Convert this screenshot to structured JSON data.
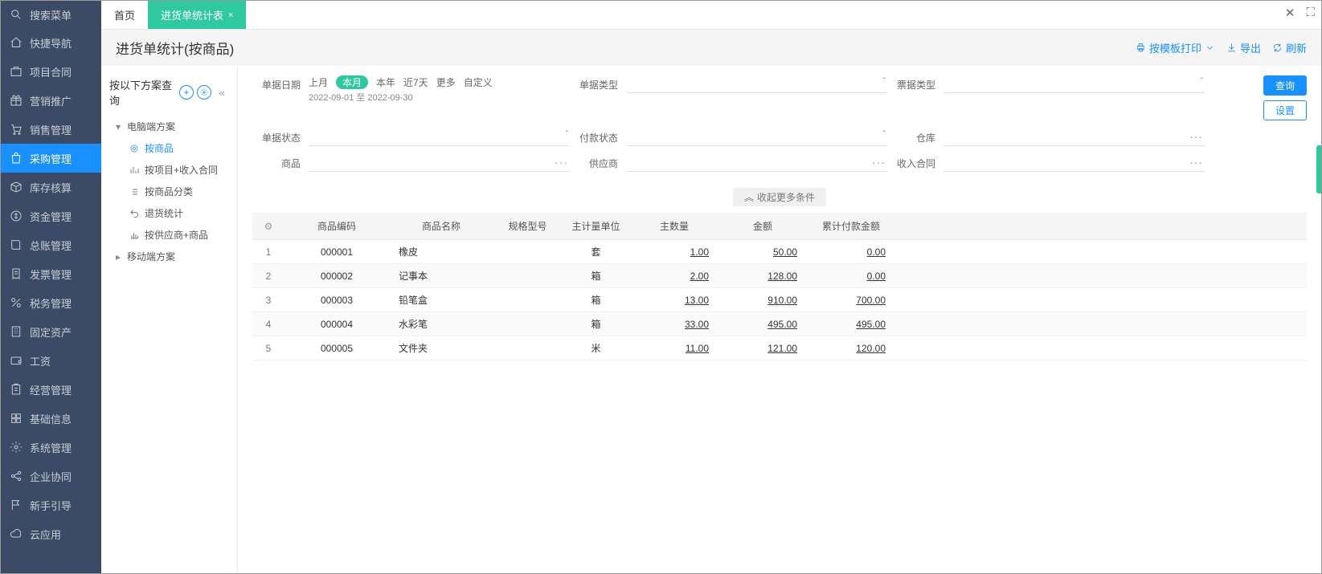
{
  "nav": {
    "search": "搜索菜单",
    "items": [
      {
        "label": "快捷导航",
        "icon": "home"
      },
      {
        "label": "项目合同",
        "icon": "case"
      },
      {
        "label": "营销推广",
        "icon": "gift"
      },
      {
        "label": "销售管理",
        "icon": "cart"
      },
      {
        "label": "采购管理",
        "icon": "bag",
        "active": true
      },
      {
        "label": "库存核算",
        "icon": "box"
      },
      {
        "label": "资金管理",
        "icon": "coin"
      },
      {
        "label": "总账管理",
        "icon": "book"
      },
      {
        "label": "发票管理",
        "icon": "receipt"
      },
      {
        "label": "税务管理",
        "icon": "percent"
      },
      {
        "label": "固定资产",
        "icon": "building"
      },
      {
        "label": "工资",
        "icon": "wallet"
      },
      {
        "label": "经营管理",
        "icon": "clip"
      },
      {
        "label": "基础信息",
        "icon": "grid"
      },
      {
        "label": "系统管理",
        "icon": "gear"
      },
      {
        "label": "企业协同",
        "icon": "share"
      },
      {
        "label": "新手引导",
        "icon": "flag"
      },
      {
        "label": "云应用",
        "icon": "cloud"
      }
    ]
  },
  "tabs": [
    {
      "label": "首页"
    },
    {
      "label": "进货单统计表",
      "active": true,
      "closable": true
    }
  ],
  "page": {
    "title": "进货单统计(按商品)",
    "actions": {
      "print": "按模板打印",
      "export": "导出",
      "refresh": "刷新"
    }
  },
  "scheme": {
    "title": "按以下方案查询",
    "groups": [
      {
        "label": "电脑端方案",
        "expanded": true,
        "leaves": [
          {
            "label": "按商品",
            "icon": "target",
            "active": true
          },
          {
            "label": "按项目+收入合同",
            "icon": "bars"
          },
          {
            "label": "按商品分类",
            "icon": "list"
          },
          {
            "label": "退货统计",
            "icon": "return"
          },
          {
            "label": "按供应商+商品",
            "icon": "chart"
          }
        ]
      },
      {
        "label": "移动端方案",
        "expanded": false
      }
    ]
  },
  "filters": {
    "date_label": "单据日期",
    "date_tabs": [
      "上月",
      "本月",
      "本年",
      "近7天",
      "更多",
      "自定义"
    ],
    "date_active": 1,
    "date_range": "2022-09-01 至 2022-09-30",
    "type_label": "单据类型",
    "ticket_label": "票据类型",
    "status_label": "单据状态",
    "pay_label": "付款状态",
    "warehouse_label": "仓库",
    "goods_label": "商品",
    "supplier_label": "供应商",
    "income_label": "收入合同",
    "query_btn": "查询",
    "set_btn": "设置",
    "collapse": "收起更多条件"
  },
  "table": {
    "columns": [
      "商品编码",
      "商品名称",
      "规格型号",
      "主计量单位",
      "主数量",
      "金额",
      "累计付款金额"
    ],
    "rows": [
      {
        "idx": 1,
        "code": "000001",
        "name": "橡皮",
        "spec": "",
        "unit": "套",
        "qty": "1.00",
        "amt": "50.00",
        "paid": "0.00"
      },
      {
        "idx": 2,
        "code": "000002",
        "name": "记事本",
        "spec": "",
        "unit": "箱",
        "qty": "2.00",
        "amt": "128.00",
        "paid": "0.00"
      },
      {
        "idx": 3,
        "code": "000003",
        "name": "铅笔盒",
        "spec": "",
        "unit": "箱",
        "qty": "13.00",
        "amt": "910.00",
        "paid": "700.00"
      },
      {
        "idx": 4,
        "code": "000004",
        "name": "水彩笔",
        "spec": "",
        "unit": "箱",
        "qty": "33.00",
        "amt": "495.00",
        "paid": "495.00"
      },
      {
        "idx": 5,
        "code": "000005",
        "name": "文件夹",
        "spec": "",
        "unit": "米",
        "qty": "11.00",
        "amt": "121.00",
        "paid": "120.00"
      }
    ]
  },
  "colors": {
    "nav_bg": "#3c4b65",
    "nav_active": "#1890ff",
    "accent_green": "#2fc9a1",
    "link": "#1890ff"
  }
}
